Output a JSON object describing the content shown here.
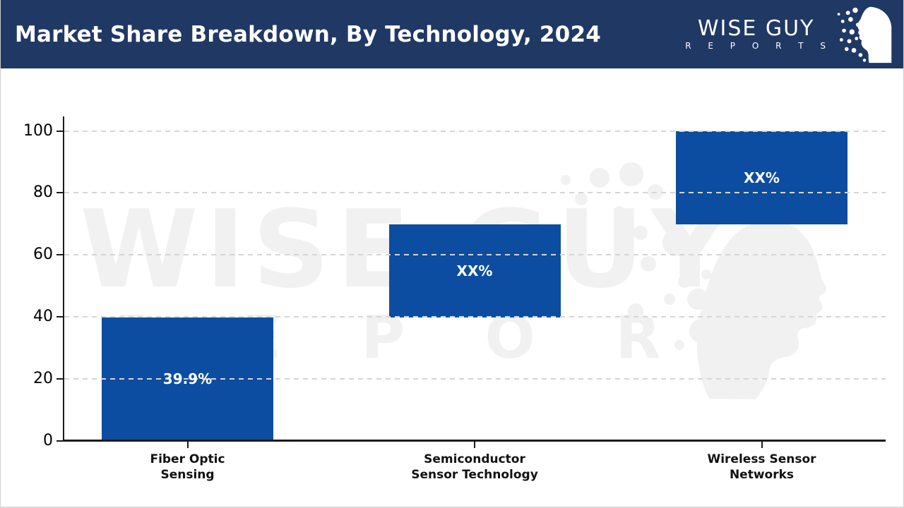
{
  "header": {
    "title": "Market Share Breakdown, By Technology, 2024",
    "logo": {
      "brand_top": "WISE GUY",
      "brand_bottom": "R E P O R T S"
    }
  },
  "watermark": {
    "line1": "WISE GUY",
    "line2": "R E P O R T S"
  },
  "chart_data": {
    "type": "bar",
    "variant": "floating-segment-bars",
    "title": "Market Share Breakdown, By Technology, 2024",
    "categories": [
      "Fiber Optic\nSensing",
      "Semiconductor\nSensor Technology",
      "Wireless Sensor\nNetworks"
    ],
    "bars": [
      {
        "category": "Fiber Optic Sensing",
        "from": 0,
        "to": 39.9,
        "label": "39.9%"
      },
      {
        "category": "Semiconductor Sensor Technology",
        "from": 39.9,
        "to": 69.9,
        "label": "XX%"
      },
      {
        "category": "Wireless Sensor Networks",
        "from": 69.9,
        "to": 99.8,
        "label": "XX%"
      }
    ],
    "y_ticks": [
      0,
      20,
      40,
      60,
      80,
      100
    ],
    "ylim": [
      0,
      104.7
    ],
    "xlabel": "",
    "ylabel": "",
    "grid": "dashed-horizontal-over-bars",
    "legend": "none",
    "bar_color": "#0d4da1",
    "bar_label_color": "#ffffff"
  },
  "colors": {
    "header_bg": "#203864",
    "bar": "#0d4da1",
    "grid": "#d5d5d5",
    "axis": "#1a1a1a",
    "watermark": "#f1f1f2",
    "title_text": "#ffffff"
  }
}
